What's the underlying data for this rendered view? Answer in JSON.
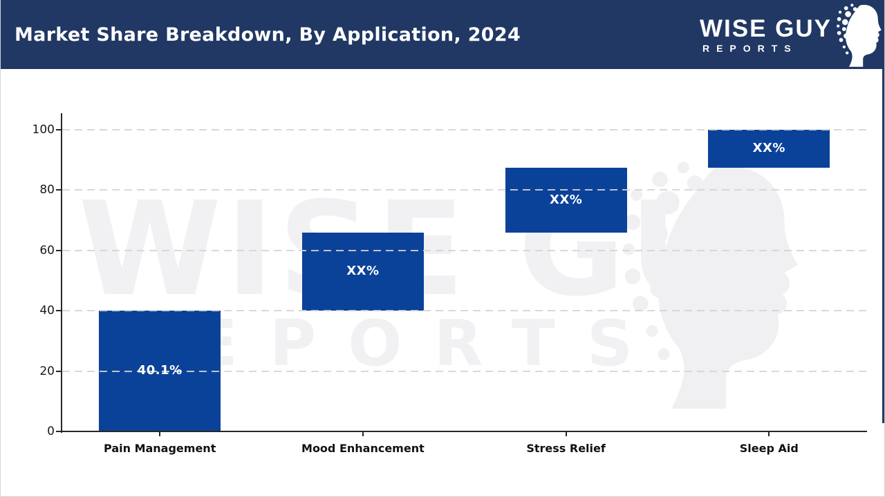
{
  "header": {
    "title": "Market Share Breakdown, By Application, 2024",
    "logo": {
      "line1": "WISE GUY",
      "line2": "REPORTS"
    }
  },
  "watermark": {
    "line1": "WISE GU",
    "line2": "REPORTS"
  },
  "chart_data": {
    "type": "bar",
    "variant": "waterfall (stepped stacked market-share bars)",
    "title": "Market Share Breakdown, By Application, 2024",
    "categories": [
      "Pain Management",
      "Mood Enhancement",
      "Stress Relief",
      "Sleep Aid"
    ],
    "segments": [
      {
        "category": "Pain Management",
        "start": 0,
        "end": 40.1,
        "label": "40.1%"
      },
      {
        "category": "Mood Enhancement",
        "start": 40.1,
        "end": 65.8,
        "label": "XX%"
      },
      {
        "category": "Stress Relief",
        "start": 65.8,
        "end": 87.4,
        "label": "XX%"
      },
      {
        "category": "Sleep Aid",
        "start": 87.4,
        "end": 100,
        "label": "XX%"
      }
    ],
    "y_ticks": [
      0,
      20,
      40,
      60,
      80,
      100
    ],
    "ylim": [
      0,
      105.5
    ],
    "xlabel": "",
    "ylabel": "",
    "legend": "none",
    "grid": "horizontal dashed gridlines drawn above bars",
    "bar_color": "#0b4299",
    "bar_label_color": "#ffffff",
    "axis_color": "#262626",
    "header_color": "#203863"
  }
}
